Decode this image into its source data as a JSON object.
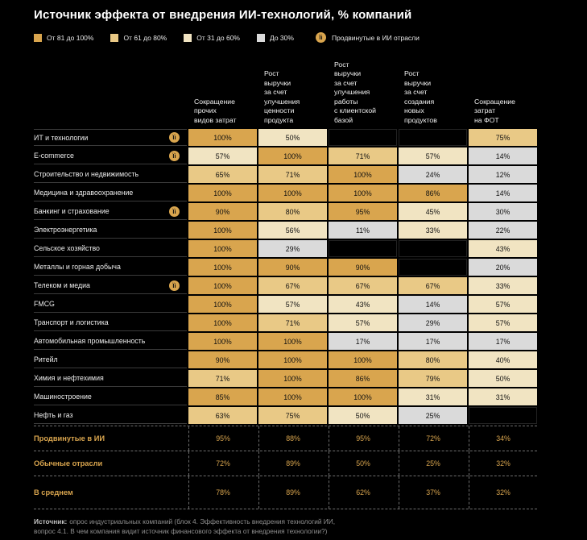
{
  "ai_badge_text": "Ïi",
  "chart_data": {
    "type": "heatmap",
    "title": "Источник эффекта от внедрения ИИ-технологий, % компаний",
    "legend": [
      {
        "label": "От 81 до 100%",
        "min": 81,
        "max": 100,
        "color": "#D9A54E"
      },
      {
        "label": "От 61 до 80%",
        "min": 61,
        "max": 80,
        "color": "#E9C986"
      },
      {
        "label": "От 31 до 60%",
        "min": 31,
        "max": 60,
        "color": "#F1E4C2"
      },
      {
        "label": "До 30%",
        "min": 0,
        "max": 30,
        "color": "#DADADA"
      }
    ],
    "ai_legend_label": "Продвинутые в ИИ отрасли",
    "missing_cell_color": "#000000",
    "columns": [
      "Сокращение\nпрочих\nвидов затрат",
      "Рост\nвыручки\nза счет\nулучшения\nценности\nпродукта",
      "Рост\nвыручки\nза счет\nулучшения\nработы\nс клиентской\nбазой",
      "Рост\nвыручки\nза счет\nсоздания\nновых\nпродуктов",
      "Сокращение\nзатрат\nна ФОТ"
    ],
    "rows": [
      {
        "label": "ИТ и технологии",
        "ai_advanced": true,
        "values": [
          100,
          50,
          null,
          null,
          75
        ]
      },
      {
        "label": "E-commerce",
        "ai_advanced": true,
        "values": [
          57,
          100,
          71,
          57,
          14
        ]
      },
      {
        "label": "Строительство и недвижимость",
        "ai_advanced": false,
        "values": [
          65,
          71,
          100,
          24,
          12
        ]
      },
      {
        "label": "Медицина и здравоохранение",
        "ai_advanced": false,
        "values": [
          100,
          100,
          100,
          86,
          14
        ]
      },
      {
        "label": "Банкинг и страхование",
        "ai_advanced": true,
        "values": [
          90,
          80,
          95,
          45,
          30
        ]
      },
      {
        "label": "Электроэнергетика",
        "ai_advanced": false,
        "values": [
          100,
          56,
          11,
          33,
          22
        ]
      },
      {
        "label": "Сельское хозяйство",
        "ai_advanced": false,
        "values": [
          100,
          29,
          null,
          null,
          43
        ]
      },
      {
        "label": "Металлы и горная добыча",
        "ai_advanced": false,
        "values": [
          100,
          90,
          90,
          null,
          20
        ]
      },
      {
        "label": "Телеком и медиа",
        "ai_advanced": true,
        "values": [
          100,
          67,
          67,
          67,
          33
        ]
      },
      {
        "label": "FMCG",
        "ai_advanced": false,
        "values": [
          100,
          57,
          43,
          14,
          57
        ]
      },
      {
        "label": "Транспорт и логистика",
        "ai_advanced": false,
        "values": [
          100,
          71,
          57,
          29,
          57
        ]
      },
      {
        "label": "Автомобильная промышленность",
        "ai_advanced": false,
        "values": [
          100,
          100,
          17,
          17,
          17
        ]
      },
      {
        "label": "Ритейл",
        "ai_advanced": false,
        "values": [
          90,
          100,
          100,
          80,
          40
        ]
      },
      {
        "label": "Химия и нефтехимия",
        "ai_advanced": false,
        "values": [
          71,
          100,
          86,
          79,
          50
        ]
      },
      {
        "label": "Машиностроение",
        "ai_advanced": false,
        "values": [
          85,
          100,
          100,
          31,
          31
        ]
      },
      {
        "label": "Нефть и газ",
        "ai_advanced": false,
        "values": [
          63,
          75,
          50,
          25,
          null
        ]
      }
    ],
    "summary_rows": [
      {
        "label": "Продвинутые в ИИ",
        "values": [
          95,
          88,
          95,
          72,
          34
        ]
      },
      {
        "label": "Обычные отрасли",
        "values": [
          72,
          89,
          50,
          25,
          32
        ]
      },
      {
        "label": "В среднем",
        "values": [
          78,
          89,
          62,
          37,
          32
        ]
      }
    ]
  },
  "footer": {
    "label": "Источник:",
    "text": "опрос индустриальных компаний (блок 4. Эффективность внедрения технологий ИИ,\nвопрос 4.1. В чем компания видит источник финансового эффекта от внедрения технологии?)"
  }
}
